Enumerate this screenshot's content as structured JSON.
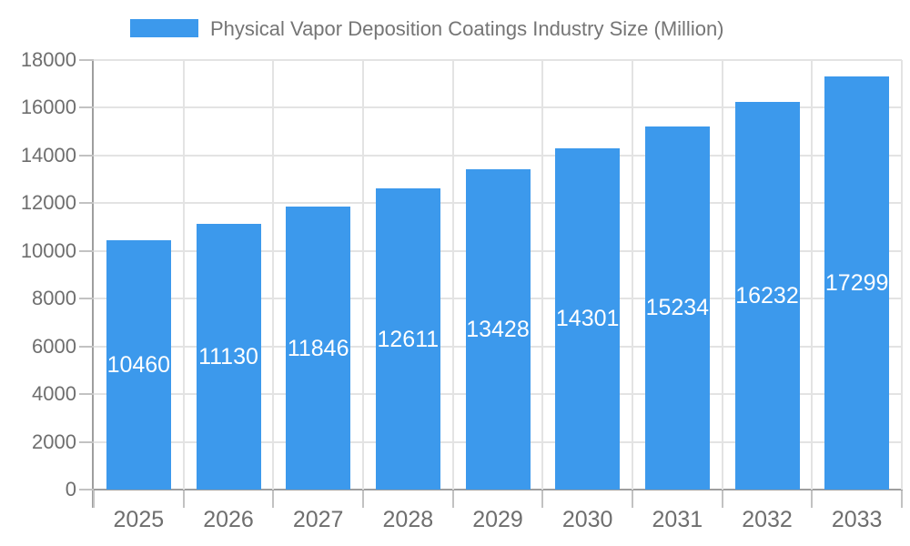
{
  "legend": {
    "label": "Physical Vapor Deposition Coatings Industry Size (Million)"
  },
  "chart_data": {
    "type": "bar",
    "title": "Physical Vapor Deposition Coatings Industry Size (Million)",
    "categories": [
      "2025",
      "2026",
      "2027",
      "2028",
      "2029",
      "2030",
      "2031",
      "2032",
      "2033"
    ],
    "values": [
      10460,
      11130,
      11846,
      12611,
      13428,
      14301,
      15234,
      16232,
      17299
    ],
    "series": [
      {
        "name": "Physical Vapor Deposition Coatings Industry Size (Million)",
        "values": [
          10460,
          11130,
          11846,
          12611,
          13428,
          14301,
          15234,
          16232,
          17299
        ]
      }
    ],
    "xlabel": "",
    "ylabel": "",
    "ylim": [
      0,
      18000
    ],
    "yticks": [
      0,
      2000,
      4000,
      6000,
      8000,
      10000,
      12000,
      14000,
      16000,
      18000
    ],
    "grid": true,
    "legend_position": "top",
    "value_labels": "white, centered inside bars",
    "colors": {
      "bar": "#3C99EC",
      "value_label": "#ffffff",
      "title_text": "#757575",
      "axis_text": "#6e6e6e",
      "grid_line": "#e3e3e3",
      "axis_line": "#9e9e9e",
      "tick_mark": "#c2c2c2"
    }
  }
}
